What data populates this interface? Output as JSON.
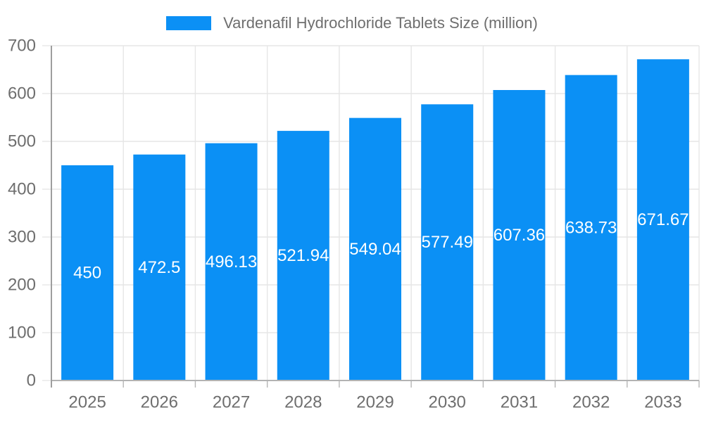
{
  "chart_data": {
    "type": "bar",
    "title": "Vardenafil Hydrochloride Tablets Size (million)",
    "legend_position": "top",
    "categories": [
      "2025",
      "2026",
      "2027",
      "2028",
      "2029",
      "2030",
      "2031",
      "2032",
      "2033"
    ],
    "values": [
      450,
      472.5,
      496.13,
      521.94,
      549.04,
      577.49,
      607.36,
      638.73,
      671.67
    ],
    "value_labels": [
      "450",
      "472.5",
      "496.13",
      "521.94",
      "549.04",
      "577.49",
      "607.36",
      "638.73",
      "671.67"
    ],
    "xlabel": "",
    "ylabel": "",
    "ylim": [
      0,
      700
    ],
    "y_ticks": [
      0,
      100,
      200,
      300,
      400,
      500,
      600,
      700
    ],
    "grid": "on",
    "colors": {
      "bar": "#0b90f5",
      "bar_label": "#ffffff",
      "axis_text": "#6e6e6e",
      "grid_line": "#e6e6e6",
      "y_axis_line": "#9e9e9e",
      "x_axis_line": "#b3b3b3",
      "tick_mark": "#b6b6b6",
      "background": "#ffffff"
    }
  }
}
